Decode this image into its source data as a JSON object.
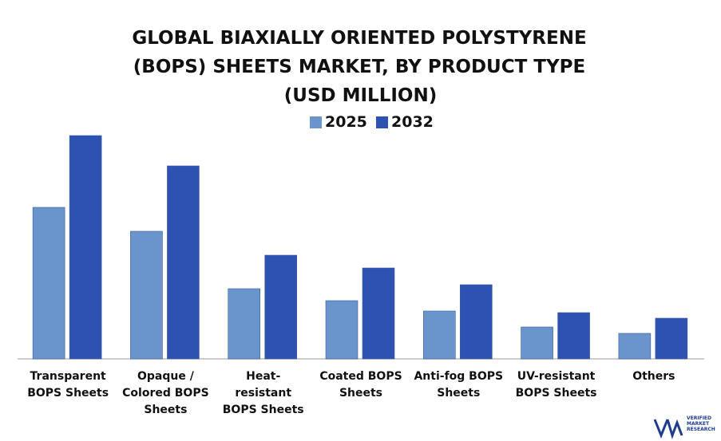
{
  "chart_data": {
    "type": "bar",
    "title": "GLOBAL BIAXIALLY ORIENTED POLYSTYRENE (BOPS) SHEETS MARKET, BY PRODUCT TYPE",
    "subtitle": "(USD MILLION)",
    "categories": [
      "Transparent BOPS Sheets",
      "Opaque / Colored BOPS Sheets",
      "Heat-resistant BOPS Sheets",
      "Coated BOPS Sheets",
      "Anti-fog BOPS Sheets",
      "UV-resistant BOPS Sheets",
      "Others"
    ],
    "series": [
      {
        "name": "2025",
        "color": "#6a95cc",
        "values": [
          190,
          160,
          88,
          73,
          60,
          40,
          32
        ]
      },
      {
        "name": "2032",
        "color": "#2e52b2",
        "values": [
          280,
          242,
          130,
          114,
          93,
          58,
          51
        ]
      }
    ],
    "ylim": [
      0,
      300
    ],
    "source_logo": "VERIFIED MARKET RESEARCH"
  }
}
